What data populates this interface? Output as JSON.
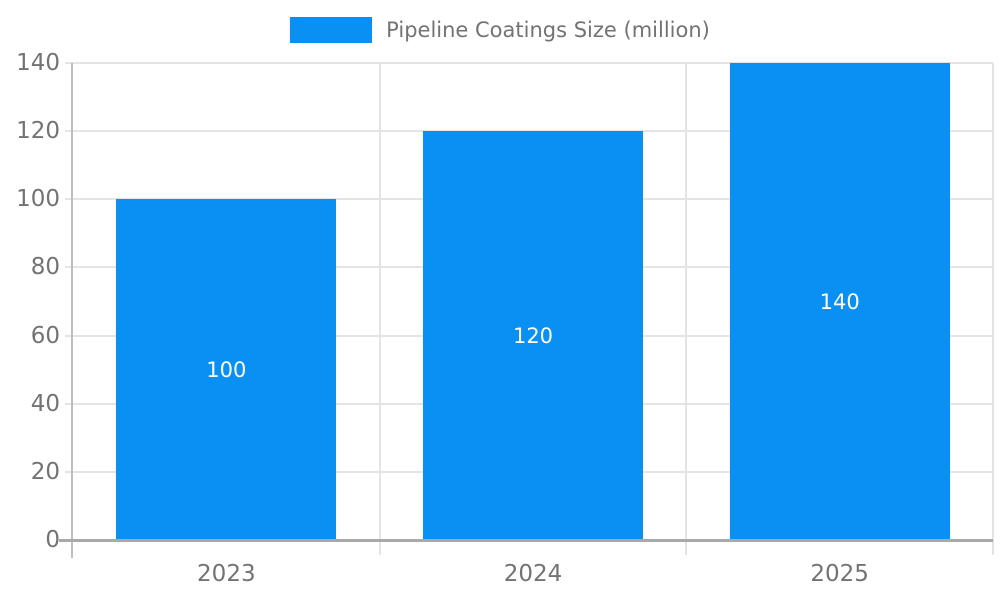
{
  "legend": {
    "swatch_icon": "series-color-swatch"
  },
  "colors": {
    "bar": "#0a90f2",
    "grid": "#e4e4e4",
    "x_axis": "#a9a9a9",
    "y_axis": "#bdbdbd",
    "axis_text": "#737373",
    "bar_label_text": "#ffffff",
    "background": "#ffffff"
  },
  "chart_data": {
    "type": "bar",
    "categories": [
      "2023",
      "2024",
      "2025"
    ],
    "series": [
      {
        "name": "Pipeline Coatings Size (million)",
        "values": [
          100,
          120,
          140
        ]
      }
    ],
    "bar_value_labels": [
      "100",
      "120",
      "140"
    ],
    "title": "",
    "xlabel": "",
    "ylabel": "",
    "ylim": [
      0,
      140
    ],
    "yticks": [
      0,
      20,
      40,
      60,
      80,
      100,
      120,
      140
    ],
    "grid": true,
    "legend_position": "top"
  }
}
